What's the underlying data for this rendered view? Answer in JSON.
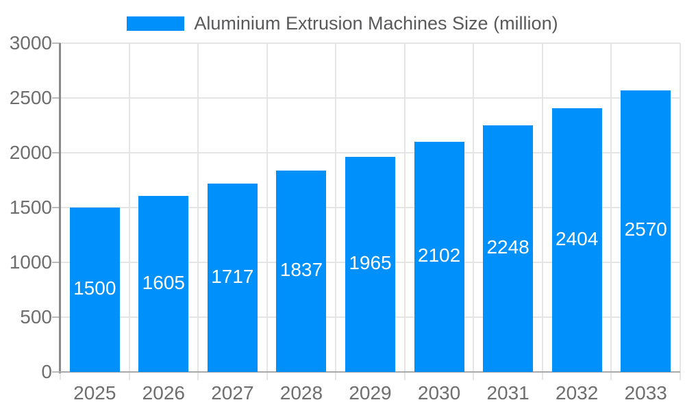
{
  "legend": {
    "series_label": "Aluminium Extrusion Machines Size (million)"
  },
  "colors": {
    "bar": "#0090FB",
    "grid": "#e5e5e5",
    "axis_y": "#8a8a8a",
    "axis_x": "#a9a9a9",
    "tick": "#bbbbbb",
    "axis_text": "#6e6e6e",
    "legend_text": "#58595b",
    "data_label": "#ffffff"
  },
  "chart_data": {
    "type": "bar",
    "title": "Aluminium Extrusion Machines Size (million)",
    "categories": [
      "2025",
      "2026",
      "2027",
      "2028",
      "2029",
      "2030",
      "2031",
      "2032",
      "2033"
    ],
    "series": [
      {
        "name": "Aluminium Extrusion Machines Size (million)",
        "values": [
          1500,
          1605,
          1717,
          1837,
          1965,
          2102,
          2248,
          2404,
          2570
        ]
      }
    ],
    "values": [
      1500,
      1605,
      1717,
      1837,
      1965,
      2102,
      2248,
      2404,
      2570
    ],
    "xlabel": "",
    "ylabel": "",
    "ylim": [
      0,
      3000
    ],
    "yticks": [
      0,
      500,
      1000,
      1500,
      2000,
      2500,
      3000
    ],
    "grid": "both",
    "legend_position": "top",
    "data_labels": "inside-center"
  }
}
